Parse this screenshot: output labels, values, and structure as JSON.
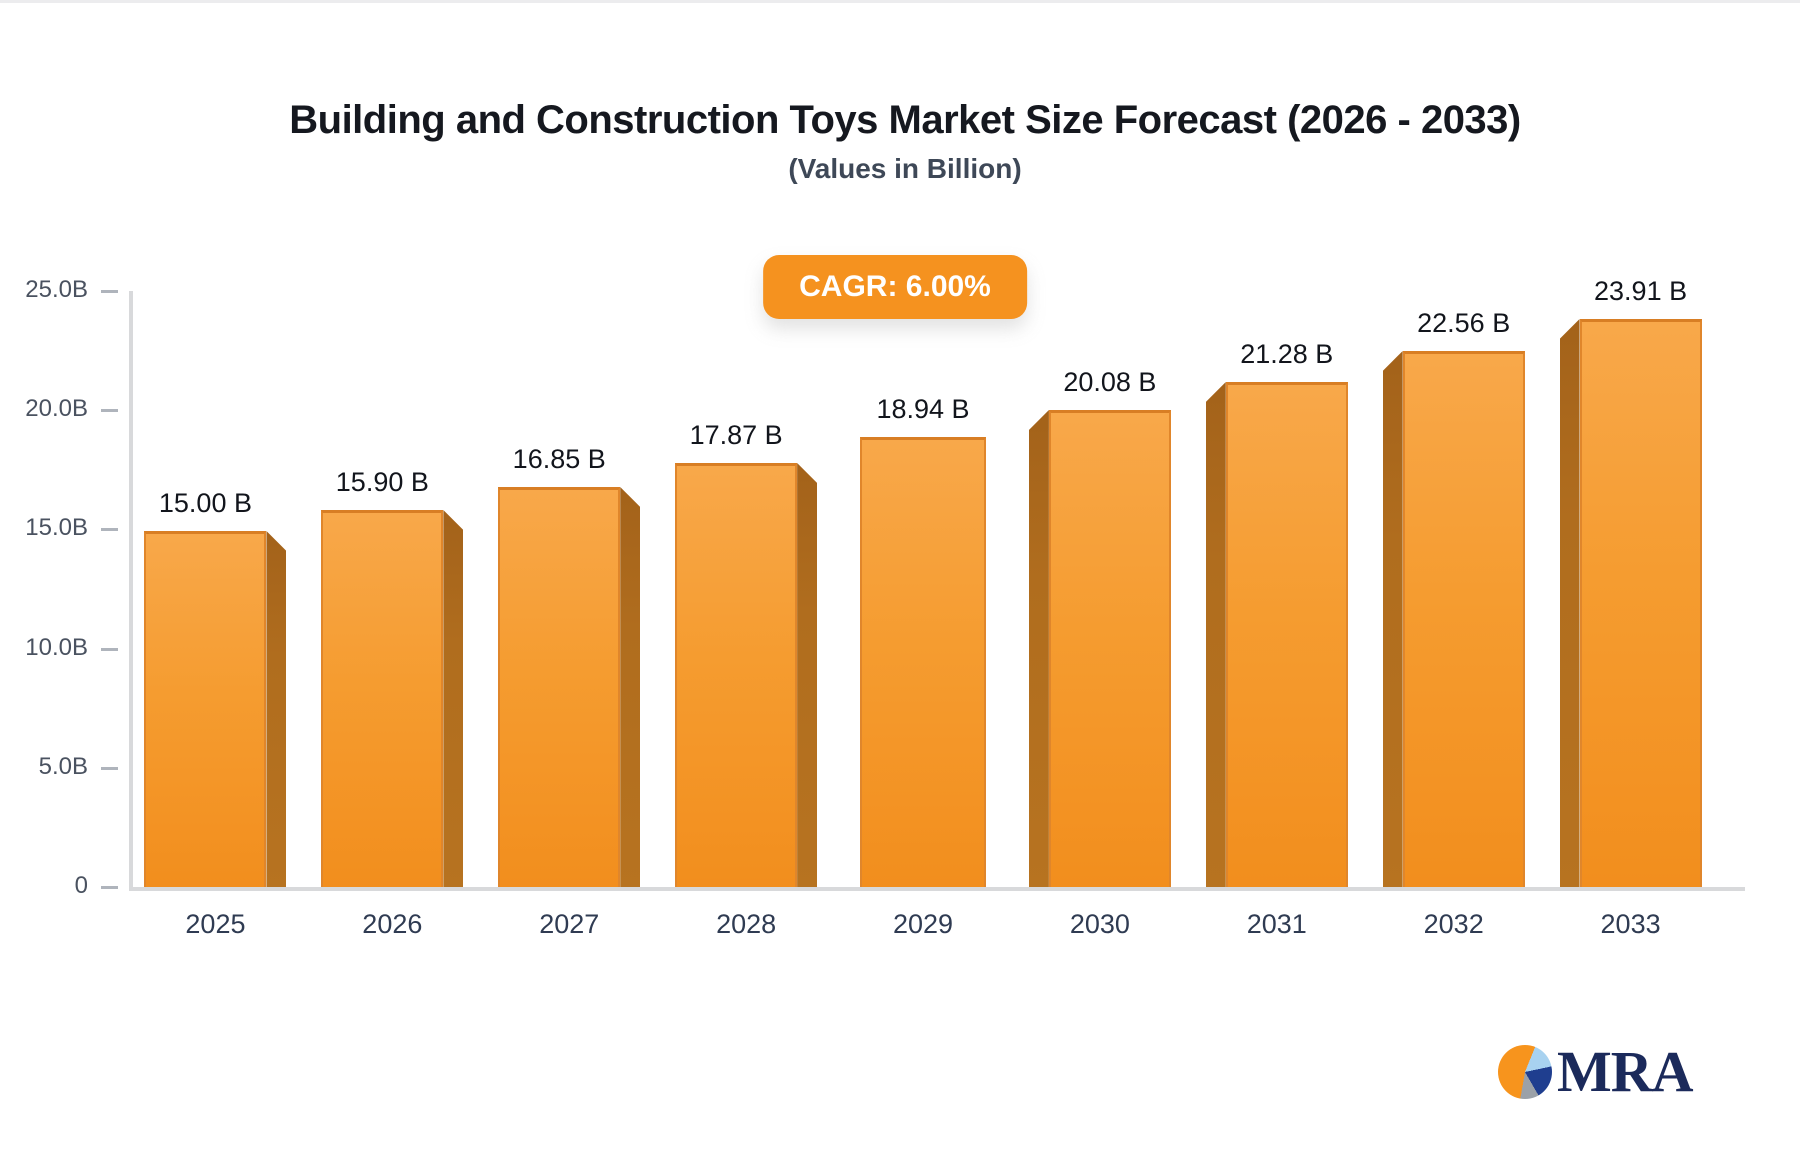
{
  "title": "Building and Construction Toys Market Size Forecast (2026 - 2033)",
  "subtitle": "(Values in Billion)",
  "badge": {
    "label": "CAGR: 6.00%",
    "bg_color": "#F5921F",
    "text_color": "#FFFFFF"
  },
  "chart_data": {
    "type": "bar",
    "title": "Building and Construction Toys Market Size Forecast (2026 - 2033)",
    "subtitle": "(Values in Billion)",
    "xlabel": "",
    "ylabel": "",
    "unit": "Billion USD",
    "categories": [
      "2025",
      "2026",
      "2027",
      "2028",
      "2029",
      "2030",
      "2031",
      "2032",
      "2033"
    ],
    "values": [
      15.0,
      15.9,
      16.85,
      17.87,
      18.94,
      20.08,
      21.28,
      22.56,
      23.91
    ],
    "value_labels": [
      "15.00 B",
      "15.90 B",
      "16.85 B",
      "17.87 B",
      "18.94 B",
      "20.08 B",
      "21.28 B",
      "22.56 B",
      "23.91 B"
    ],
    "side_orientation": [
      "right",
      "right",
      "right",
      "right",
      "none",
      "left",
      "left",
      "left",
      "left"
    ],
    "ylim": [
      0,
      25
    ],
    "yticks": [
      {
        "value": 25,
        "label": "25.0B"
      },
      {
        "value": 20,
        "label": "20.0B"
      },
      {
        "value": 15,
        "label": "15.0B"
      },
      {
        "value": 10,
        "label": "10.0B"
      },
      {
        "value": 5,
        "label": "5.0B"
      },
      {
        "value": 0,
        "label": "0"
      }
    ],
    "grid": false,
    "legend": false,
    "cagr": "6.00%",
    "bar_colors": {
      "face_top": "#F8A84A",
      "face_bottom": "#F28E1D",
      "side": "#B06D1E",
      "edge": "#DE8126"
    },
    "axis_color": "#D8D9DB",
    "tick_color": "#AFB4BC"
  },
  "logo": {
    "text": "MRA",
    "pie_colors": {
      "orange": "#F7941D",
      "light_blue": "#A8D2F0",
      "dark_blue": "#1F3E8F",
      "gray": "#9BA1A8"
    },
    "text_color": "#1B2A5B"
  }
}
